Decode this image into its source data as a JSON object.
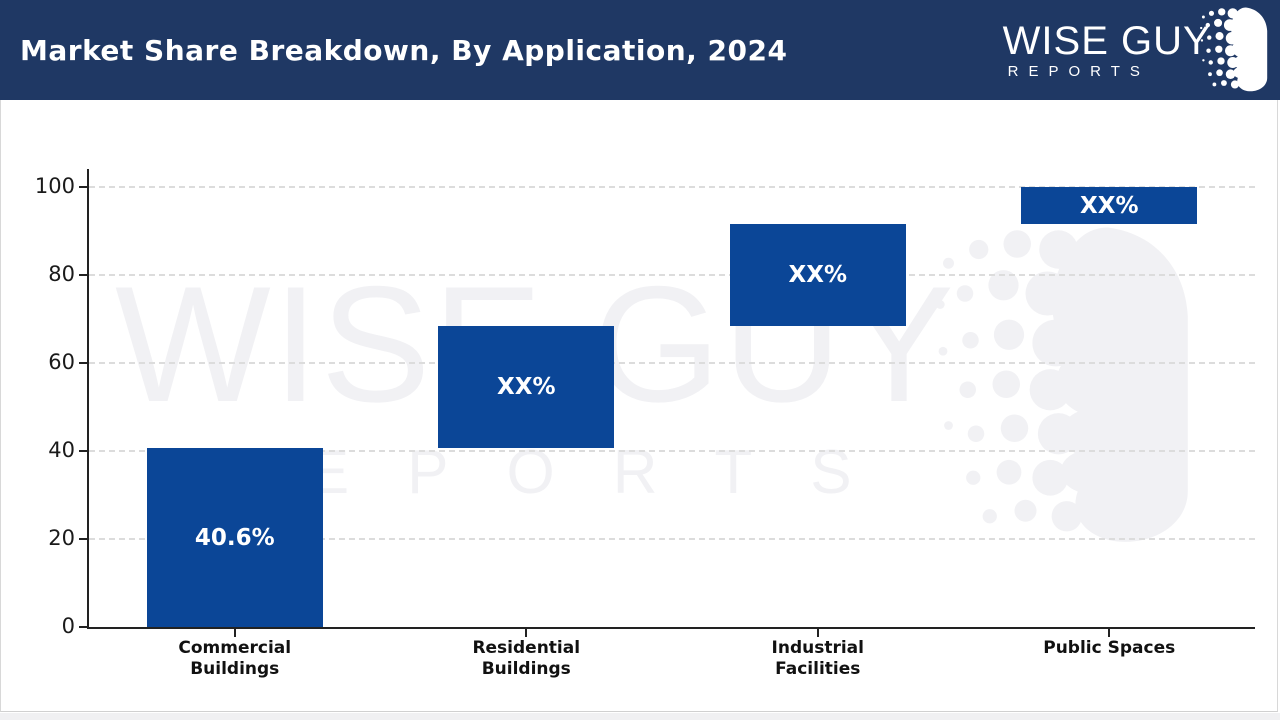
{
  "header": {
    "title": "Market Share Breakdown, By Application, 2024",
    "bg_color": "#1F3864",
    "logo": {
      "line1": "WISE GUY",
      "line2": "REPORTS"
    }
  },
  "watermark": {
    "line1": "WISE GUY",
    "line2": "REPORTS"
  },
  "chart_data": {
    "type": "bar",
    "subtype": "floating-segment-waterfall",
    "title": "Market Share Breakdown, By Application, 2024",
    "categories": [
      "Commercial Buildings",
      "Residential Buildings",
      "Industrial Facilities",
      "Public Spaces"
    ],
    "segments": [
      {
        "category": "Commercial Buildings",
        "lines": [
          "Commercial",
          "Buildings"
        ],
        "start": 0,
        "end": 40.6,
        "value": 40.6,
        "label": "40.6%"
      },
      {
        "category": "Residential Buildings",
        "lines": [
          "Residential",
          "Buildings"
        ],
        "start": 40.6,
        "end": 68.5,
        "value": 27.9,
        "label": "XX%"
      },
      {
        "category": "Industrial Facilities",
        "lines": [
          "Industrial",
          "Facilities"
        ],
        "start": 68.5,
        "end": 91.5,
        "value": 23.0,
        "label": "XX%"
      },
      {
        "category": "Public Spaces",
        "lines": [
          "Public Spaces"
        ],
        "start": 91.5,
        "end": 100,
        "value": 8.5,
        "label": "XX%"
      }
    ],
    "y_axis": {
      "ticks": [
        0,
        20,
        40,
        60,
        80,
        100
      ],
      "range": [
        0,
        104
      ]
    },
    "grid": {
      "show": true,
      "style": "dashed",
      "color": "#dcdcdc"
    },
    "legend": "none",
    "bar_color": "#0B4697",
    "bar_label_color": "#FFFFFF",
    "axis_color": "#222222"
  }
}
